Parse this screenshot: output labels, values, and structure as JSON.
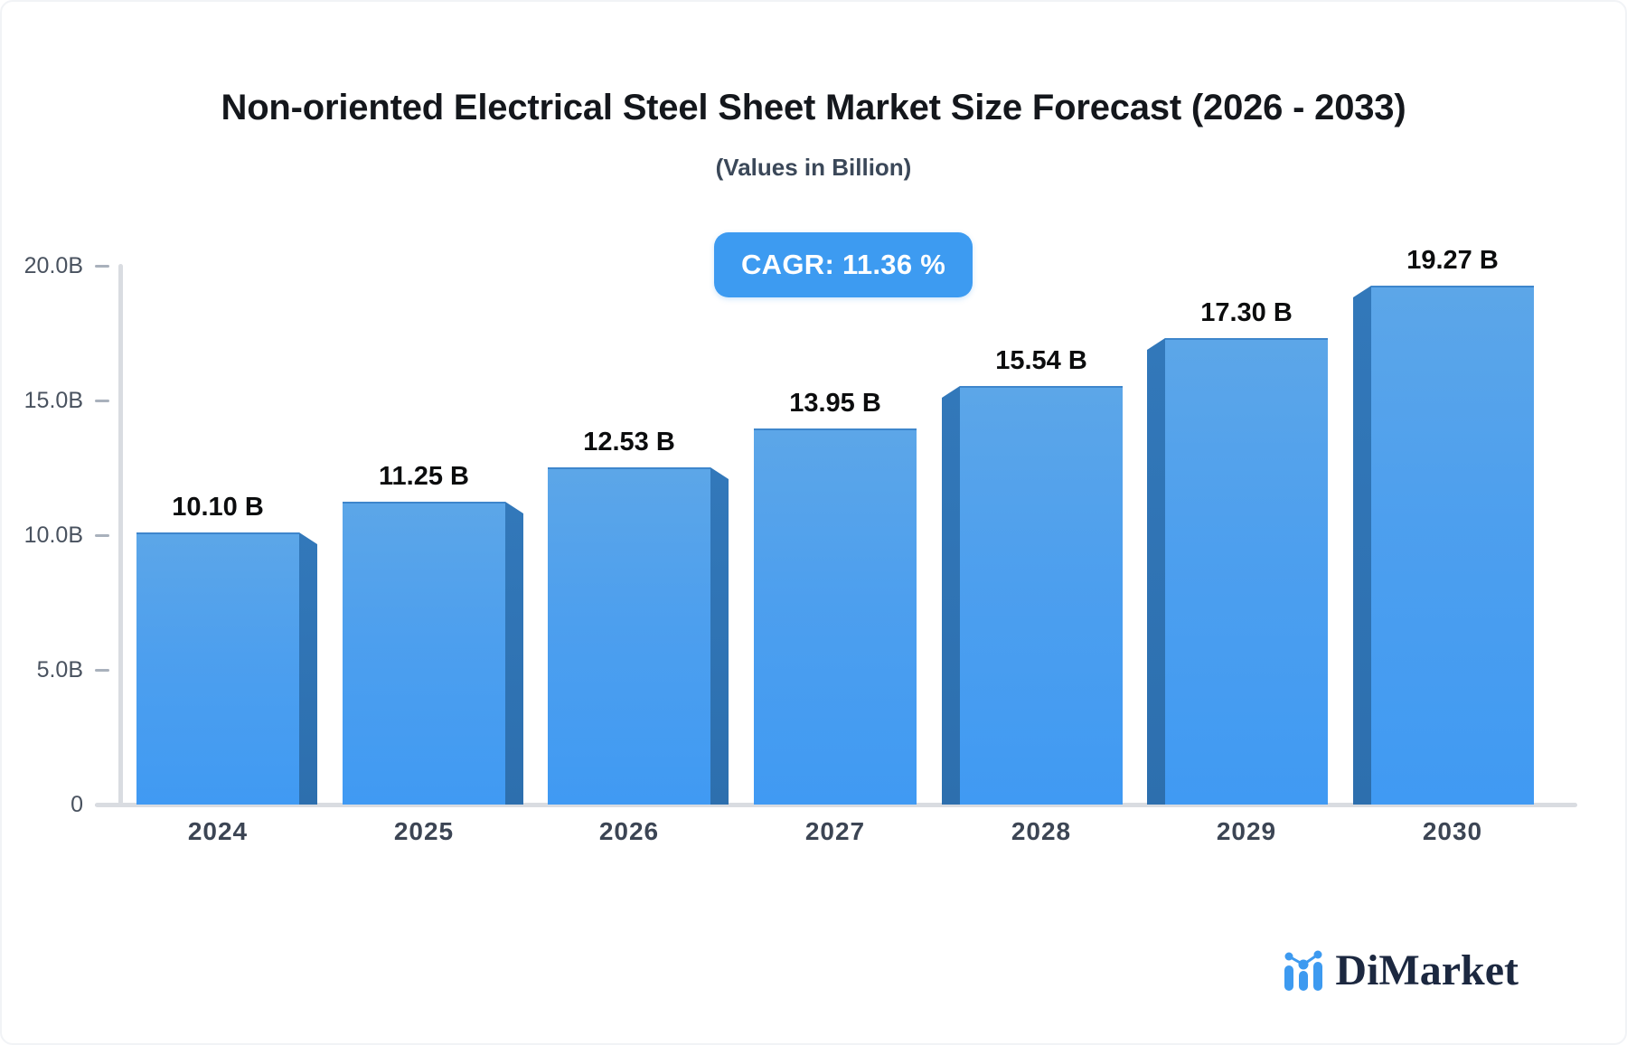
{
  "header": {
    "title": "Non-oriented Electrical Steel Sheet Market Size Forecast (2026 - 2033)",
    "subtitle": "(Values in Billion)"
  },
  "badge": {
    "label": "CAGR: 11.36 %"
  },
  "chart_data": {
    "type": "bar",
    "title": "Non-oriented Electrical Steel Sheet Market Size Forecast (2026 - 2033)",
    "subtitle": "(Values in Billion)",
    "cagr_percent": 11.36,
    "categories": [
      "2024",
      "2025",
      "2026",
      "2027",
      "2028",
      "2029",
      "2030"
    ],
    "values": [
      10.1,
      11.25,
      12.53,
      13.95,
      15.54,
      17.3,
      19.27
    ],
    "value_labels": [
      "10.10 B",
      "11.25 B",
      "12.53 B",
      "13.95 B",
      "15.54 B",
      "17.30 B",
      "19.27 B"
    ],
    "unit": "Billion",
    "ylim": [
      0,
      20
    ],
    "yticks": [
      {
        "v": 0,
        "label": "0"
      },
      {
        "v": 5,
        "label": "5.0B"
      },
      {
        "v": 10,
        "label": "10.0B"
      },
      {
        "v": 15,
        "label": "15.0B"
      },
      {
        "v": 20,
        "label": "20.0B"
      }
    ],
    "grid": "off",
    "legend": "none",
    "colors": {
      "bar_top": "#5ca6e8",
      "bar_bottom": "#409af3",
      "bar_side": "#2e74b5",
      "badge_blue": "#3d9bf1",
      "axis_gray": "#d9dce1",
      "tick_text": "#49525f",
      "label_text": "#0c0d0e"
    }
  },
  "footer": {
    "brand": "DiMarket"
  }
}
